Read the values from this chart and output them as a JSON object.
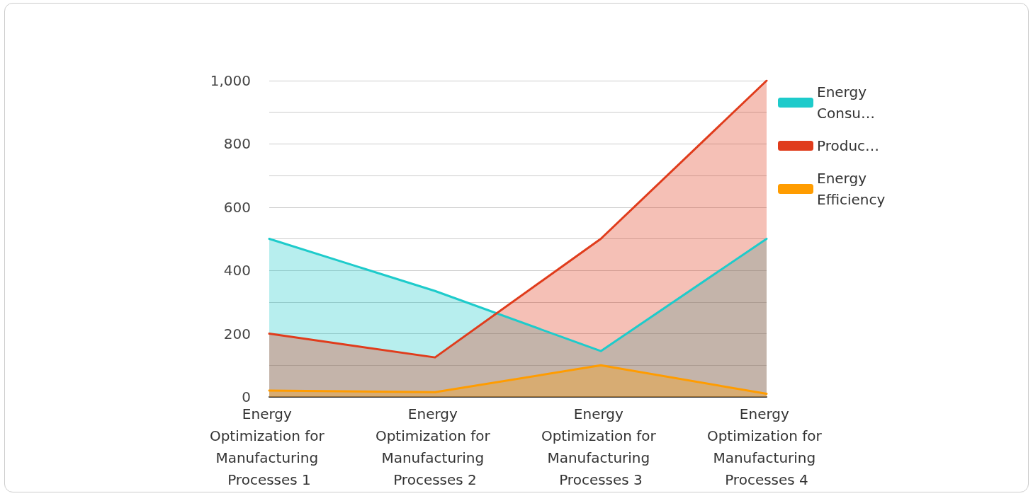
{
  "chart_data": {
    "type": "area",
    "categories": [
      "Energy Optimization for Manufacturing Processes 1",
      "Energy Optimization for Manufacturing Processes 2",
      "Energy Optimization for Manufacturing Processes 3",
      "Energy Optimization for Manufacturing Processes 4"
    ],
    "series": [
      {
        "name": "Energy Consu…",
        "color": "#1ecbcb",
        "values": [
          500,
          335,
          145,
          500
        ]
      },
      {
        "name": "Produc…",
        "color": "#e03c1c",
        "values": [
          200,
          125,
          500,
          1000
        ]
      },
      {
        "name": "Energy Efficiency",
        "color": "#ff9c00",
        "values": [
          20,
          15,
          100,
          10
        ]
      }
    ],
    "ylim": [
      0,
      1000
    ],
    "yticks": [
      0,
      {
        "value": 100,
        "label": null
      },
      200,
      {
        "value": 300,
        "label": null
      },
      400,
      {
        "value": 500,
        "label": null
      },
      600,
      {
        "value": 700,
        "label": null
      },
      800,
      {
        "value": 900,
        "label": null
      },
      {
        "value": 1000,
        "label": "1,000"
      }
    ],
    "grid": true,
    "legend": "right",
    "marker": "none",
    "line_style": "solid"
  }
}
